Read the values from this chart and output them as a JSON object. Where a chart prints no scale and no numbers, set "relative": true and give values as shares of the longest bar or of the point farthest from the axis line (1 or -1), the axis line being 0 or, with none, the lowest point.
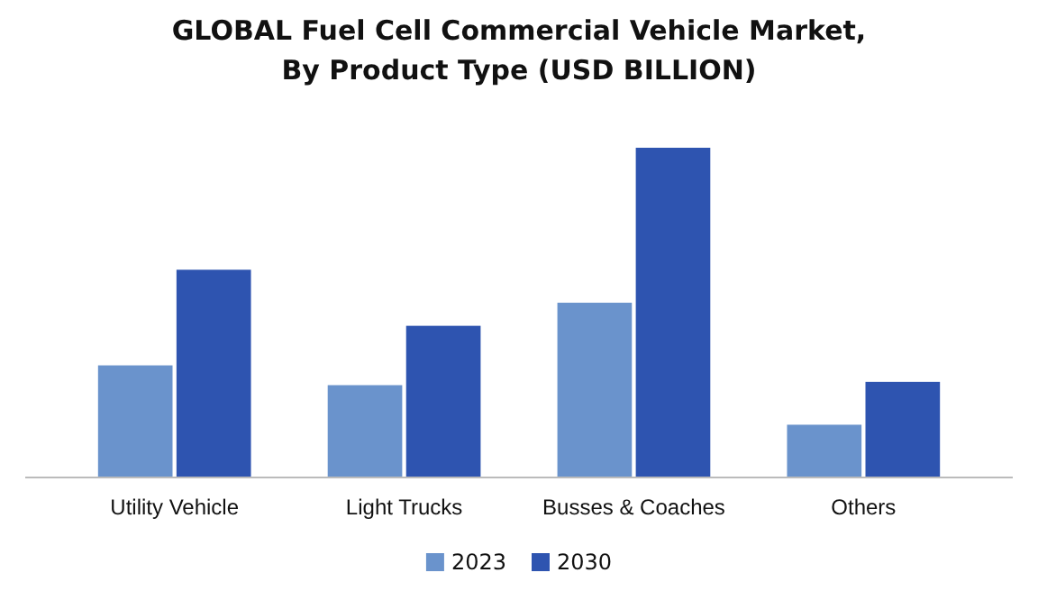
{
  "chart_data": {
    "type": "bar",
    "title": "GLOBAL Fuel Cell Commercial Vehicle Market,\nBy Product Type (USD BILLION)",
    "relative": true,
    "categories": [
      "Utility Vehicle",
      "Light Trucks",
      "Busses & Coaches",
      "Others"
    ],
    "series": [
      {
        "name": "2023",
        "color": "#6a93cc",
        "values": [
          0.34,
          0.28,
          0.53,
          0.16
        ]
      },
      {
        "name": "2030",
        "color": "#2e54b0",
        "values": [
          0.63,
          0.46,
          1,
          0.29
        ]
      }
    ],
    "legend": "bottom"
  }
}
